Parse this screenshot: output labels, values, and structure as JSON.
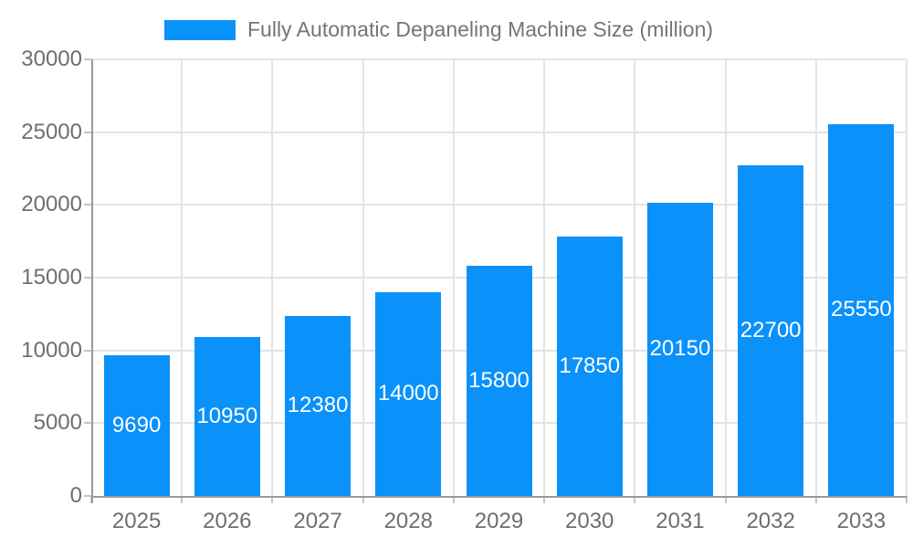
{
  "chart_data": {
    "type": "bar",
    "title": "Fully Automatic Depaneling Machine Size (million)",
    "categories": [
      "2025",
      "2026",
      "2027",
      "2028",
      "2029",
      "2030",
      "2031",
      "2032",
      "2033"
    ],
    "values": [
      9690,
      10950,
      12380,
      14000,
      15800,
      17850,
      20150,
      22700,
      25550
    ],
    "xlabel": "",
    "ylabel": "",
    "ylim": [
      0,
      30000
    ],
    "yticks": [
      0,
      5000,
      10000,
      15000,
      20000,
      25000,
      30000
    ],
    "grid": true,
    "legend_position": "top",
    "value_label_position": "inside-center"
  },
  "colors": {
    "bar": "#0A91FA",
    "grid": "#E4E4E4",
    "axis": "#9A9A9A",
    "tick": "#C4C4C4",
    "axis_text": "#6E6E6E",
    "legend_text": "#757575",
    "value_text": "#FFFFFF",
    "background": "#FFFFFF"
  }
}
